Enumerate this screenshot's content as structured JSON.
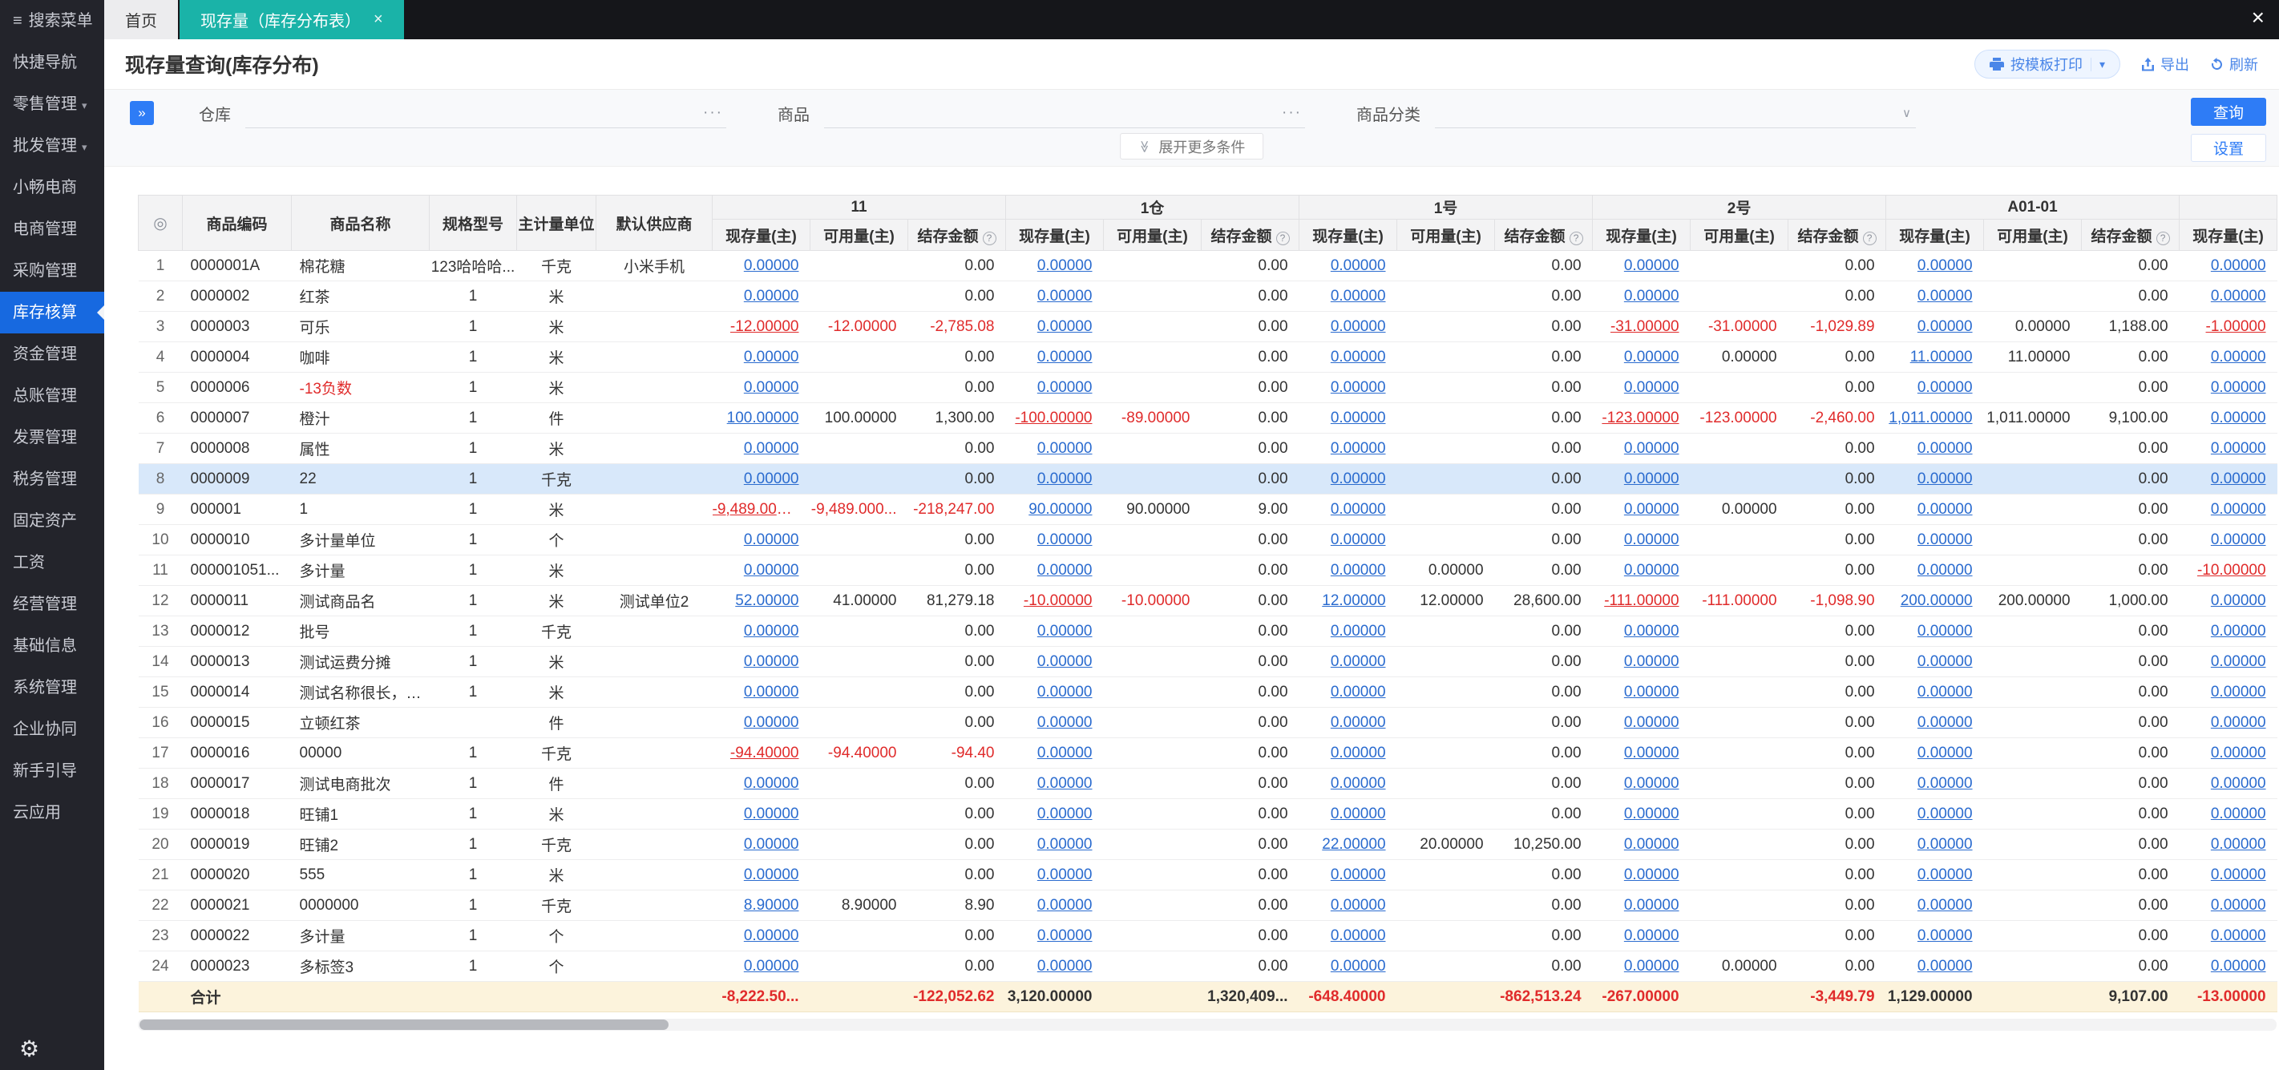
{
  "app": {
    "window_close": "×"
  },
  "tabs": {
    "home": "首页",
    "active": "现存量（库存分布表）",
    "close": "×"
  },
  "sidebar": {
    "items": [
      {
        "label": "搜索菜单",
        "icon": "menu"
      },
      {
        "label": "快捷导航"
      },
      {
        "label": "零售管理",
        "caret": true
      },
      {
        "label": "批发管理",
        "caret": true
      },
      {
        "label": "小畅电商"
      },
      {
        "label": "电商管理"
      },
      {
        "label": "采购管理"
      },
      {
        "label": "库存核算",
        "active": true
      },
      {
        "label": "资金管理"
      },
      {
        "label": "总账管理"
      },
      {
        "label": "发票管理"
      },
      {
        "label": "税务管理"
      },
      {
        "label": "固定资产"
      },
      {
        "label": "工资"
      },
      {
        "label": "经营管理"
      },
      {
        "label": "基础信息"
      },
      {
        "label": "系统管理"
      },
      {
        "label": "企业协同"
      },
      {
        "label": "新手引导"
      },
      {
        "label": "云应用"
      }
    ]
  },
  "header": {
    "title": "现存量查询(库存分布)",
    "print_label": "按模板打印",
    "export_label": "导出",
    "refresh_label": "刷新"
  },
  "filters": {
    "warehouse_label": "仓库",
    "goods_label": "商品",
    "category_label": "商品分类",
    "search_label": "查询",
    "settings_label": "设置",
    "expand_label": "展开更多条件"
  },
  "colors": {
    "accent": "#2e7cf6",
    "tab_active": "#1ab3a8",
    "sidebar_active": "#1769e0",
    "link": "#2a6bcf",
    "negative": "#e02b2b",
    "total_row_bg": "#fcf3dc"
  },
  "table": {
    "fixed_headers": [
      "商品编码",
      "商品名称",
      "规格型号",
      "主计量单位",
      "默认供应商"
    ],
    "groups": [
      {
        "name": "11",
        "cols": 3
      },
      {
        "name": "1仓",
        "cols": 3
      },
      {
        "name": "1号",
        "cols": 3
      },
      {
        "name": "2号",
        "cols": 3
      },
      {
        "name": "A01-01",
        "cols": 3
      },
      {
        "name": "",
        "cols": 1
      }
    ],
    "sub_headers": [
      "现存量(主)",
      "可用量(主)",
      "结存金额"
    ],
    "rows": [
      {
        "num": 1,
        "code": "0000001A",
        "name": "棉花糖",
        "spec": "123哈哈哈...",
        "unit": "千克",
        "supplier": "小米手机",
        "cells": [
          "L|0.00000",
          "",
          "0.00",
          "L|0.00000",
          "",
          "0.00",
          "L|0.00000",
          "",
          "0.00",
          "L|0.00000",
          "",
          "0.00",
          "L|0.00000",
          "",
          "0.00",
          "L|0.00000"
        ]
      },
      {
        "num": 2,
        "code": "0000002",
        "name": "红茶",
        "spec": "1",
        "unit": "米",
        "supplier": "",
        "cells": [
          "L|0.00000",
          "",
          "0.00",
          "L|0.00000",
          "",
          "0.00",
          "L|0.00000",
          "",
          "0.00",
          "L|0.00000",
          "",
          "0.00",
          "L|0.00000",
          "",
          "0.00",
          "L|0.00000"
        ]
      },
      {
        "num": 3,
        "code": "0000003",
        "name": "可乐",
        "spec": "1",
        "unit": "米",
        "supplier": "",
        "cells": [
          "R|-12.00000",
          "r|-12.00000",
          "r|-2,785.08",
          "L|0.00000",
          "",
          "0.00",
          "L|0.00000",
          "",
          "0.00",
          "R|-31.00000",
          "r|-31.00000",
          "r|-1,029.89",
          "L|0.00000",
          "0.00000",
          "1,188.00",
          "R|-1.00000"
        ]
      },
      {
        "num": 4,
        "code": "0000004",
        "name": "咖啡",
        "spec": "1",
        "unit": "米",
        "supplier": "",
        "cells": [
          "L|0.00000",
          "",
          "0.00",
          "L|0.00000",
          "",
          "0.00",
          "L|0.00000",
          "",
          "0.00",
          "L|0.00000",
          "0.00000",
          "0.00",
          "L|11.00000",
          "11.00000",
          "0.00",
          "L|0.00000"
        ]
      },
      {
        "num": 5,
        "code": "0000006",
        "name": "-13负数",
        "name_red": true,
        "spec": "1",
        "unit": "米",
        "supplier": "",
        "cells": [
          "L|0.00000",
          "",
          "0.00",
          "L|0.00000",
          "",
          "0.00",
          "L|0.00000",
          "",
          "0.00",
          "L|0.00000",
          "",
          "0.00",
          "L|0.00000",
          "",
          "0.00",
          "L|0.00000"
        ]
      },
      {
        "num": 6,
        "code": "0000007",
        "name": "橙汁",
        "spec": "1",
        "unit": "件",
        "supplier": "",
        "cells": [
          "L|100.00000",
          "100.00000",
          "1,300.00",
          "R|-100.00000",
          "r|-89.00000",
          "0.00",
          "L|0.00000",
          "",
          "0.00",
          "R|-123.00000",
          "r|-123.00000",
          "r|-2,460.00",
          "L|1,011.00000",
          "1,011.00000",
          "9,100.00",
          "L|0.00000"
        ]
      },
      {
        "num": 7,
        "code": "0000008",
        "name": "属性",
        "spec": "1",
        "unit": "米",
        "supplier": "",
        "cells": [
          "L|0.00000",
          "",
          "0.00",
          "L|0.00000",
          "",
          "0.00",
          "L|0.00000",
          "",
          "0.00",
          "L|0.00000",
          "",
          "0.00",
          "L|0.00000",
          "",
          "0.00",
          "L|0.00000"
        ]
      },
      {
        "num": 8,
        "code": "0000009",
        "name": "22",
        "spec": "1",
        "unit": "千克",
        "supplier": "",
        "highlight": true,
        "cells": [
          "L|0.00000",
          "",
          "0.00",
          "L|0.00000",
          "",
          "0.00",
          "L|0.00000",
          "",
          "0.00",
          "L|0.00000",
          "",
          "0.00",
          "L|0.00000",
          "",
          "0.00",
          "L|0.00000"
        ]
      },
      {
        "num": 9,
        "code": "000001",
        "name": "1",
        "spec": "1",
        "unit": "米",
        "supplier": "",
        "cells": [
          "R|-9,489.00000",
          "r|-9,489.000...",
          "r|-218,247.00",
          "L|90.00000",
          "90.00000",
          "9.00",
          "L|0.00000",
          "",
          "0.00",
          "L|0.00000",
          "0.00000",
          "0.00",
          "L|0.00000",
          "",
          "0.00",
          "L|0.00000"
        ]
      },
      {
        "num": 10,
        "code": "0000010",
        "name": "多计量单位",
        "spec": "1",
        "unit": "个",
        "supplier": "",
        "cells": [
          "L|0.00000",
          "",
          "0.00",
          "L|0.00000",
          "",
          "0.00",
          "L|0.00000",
          "",
          "0.00",
          "L|0.00000",
          "",
          "0.00",
          "L|0.00000",
          "",
          "0.00",
          "L|0.00000"
        ]
      },
      {
        "num": 11,
        "code": "000001051...",
        "name": "多计量",
        "spec": "1",
        "unit": "米",
        "supplier": "",
        "cells": [
          "L|0.00000",
          "",
          "0.00",
          "L|0.00000",
          "",
          "0.00",
          "L|0.00000",
          "0.00000",
          "0.00",
          "L|0.00000",
          "",
          "0.00",
          "L|0.00000",
          "",
          "0.00",
          "R|-10.00000"
        ]
      },
      {
        "num": 12,
        "code": "0000011",
        "name": "测试商品名",
        "spec": "1",
        "unit": "米",
        "supplier": "测试单位2",
        "cells": [
          "L|52.00000",
          "41.00000",
          "81,279.18",
          "R|-10.00000",
          "r|-10.00000",
          "0.00",
          "L|12.00000",
          "12.00000",
          "28,600.00",
          "R|-111.00000",
          "r|-111.00000",
          "r|-1,098.90",
          "L|200.00000",
          "200.00000",
          "1,000.00",
          "L|0.00000"
        ]
      },
      {
        "num": 13,
        "code": "0000012",
        "name": "批号",
        "spec": "1",
        "unit": "千克",
        "supplier": "",
        "cells": [
          "L|0.00000",
          "",
          "0.00",
          "L|0.00000",
          "",
          "0.00",
          "L|0.00000",
          "",
          "0.00",
          "L|0.00000",
          "",
          "0.00",
          "L|0.00000",
          "",
          "0.00",
          "L|0.00000"
        ]
      },
      {
        "num": 14,
        "code": "0000013",
        "name": "测试运费分摊",
        "spec": "1",
        "unit": "米",
        "supplier": "",
        "cells": [
          "L|0.00000",
          "",
          "0.00",
          "L|0.00000",
          "",
          "0.00",
          "L|0.00000",
          "",
          "0.00",
          "L|0.00000",
          "",
          "0.00",
          "L|0.00000",
          "",
          "0.00",
          "L|0.00000"
        ]
      },
      {
        "num": 15,
        "code": "0000014",
        "name": "测试名称很长，然后数...",
        "spec": "1",
        "unit": "米",
        "supplier": "",
        "cells": [
          "L|0.00000",
          "",
          "0.00",
          "L|0.00000",
          "",
          "0.00",
          "L|0.00000",
          "",
          "0.00",
          "L|0.00000",
          "",
          "0.00",
          "L|0.00000",
          "",
          "0.00",
          "L|0.00000"
        ]
      },
      {
        "num": 16,
        "code": "0000015",
        "name": "立顿红茶",
        "spec": "",
        "unit": "件",
        "supplier": "",
        "cells": [
          "L|0.00000",
          "",
          "0.00",
          "L|0.00000",
          "",
          "0.00",
          "L|0.00000",
          "",
          "0.00",
          "L|0.00000",
          "",
          "0.00",
          "L|0.00000",
          "",
          "0.00",
          "L|0.00000"
        ]
      },
      {
        "num": 17,
        "code": "0000016",
        "name": "00000",
        "spec": "1",
        "unit": "千克",
        "supplier": "",
        "cells": [
          "R|-94.40000",
          "r|-94.40000",
          "r|-94.40",
          "L|0.00000",
          "",
          "0.00",
          "L|0.00000",
          "",
          "0.00",
          "L|0.00000",
          "",
          "0.00",
          "L|0.00000",
          "",
          "0.00",
          "L|0.00000"
        ]
      },
      {
        "num": 18,
        "code": "0000017",
        "name": "测试电商批次",
        "spec": "1",
        "unit": "件",
        "supplier": "",
        "cells": [
          "L|0.00000",
          "",
          "0.00",
          "L|0.00000",
          "",
          "0.00",
          "L|0.00000",
          "",
          "0.00",
          "L|0.00000",
          "",
          "0.00",
          "L|0.00000",
          "",
          "0.00",
          "L|0.00000"
        ]
      },
      {
        "num": 19,
        "code": "0000018",
        "name": "旺铺1",
        "spec": "1",
        "unit": "米",
        "supplier": "",
        "cells": [
          "L|0.00000",
          "",
          "0.00",
          "L|0.00000",
          "",
          "0.00",
          "L|0.00000",
          "",
          "0.00",
          "L|0.00000",
          "",
          "0.00",
          "L|0.00000",
          "",
          "0.00",
          "L|0.00000"
        ]
      },
      {
        "num": 20,
        "code": "0000019",
        "name": "旺铺2",
        "spec": "1",
        "unit": "千克",
        "supplier": "",
        "cells": [
          "L|0.00000",
          "",
          "0.00",
          "L|0.00000",
          "",
          "0.00",
          "L|22.00000",
          "20.00000",
          "10,250.00",
          "L|0.00000",
          "",
          "0.00",
          "L|0.00000",
          "",
          "0.00",
          "L|0.00000"
        ]
      },
      {
        "num": 21,
        "code": "0000020",
        "name": "555",
        "spec": "1",
        "unit": "米",
        "supplier": "",
        "cells": [
          "L|0.00000",
          "",
          "0.00",
          "L|0.00000",
          "",
          "0.00",
          "L|0.00000",
          "",
          "0.00",
          "L|0.00000",
          "",
          "0.00",
          "L|0.00000",
          "",
          "0.00",
          "L|0.00000"
        ]
      },
      {
        "num": 22,
        "code": "0000021",
        "name": "0000000",
        "spec": "1",
        "unit": "千克",
        "supplier": "",
        "cells": [
          "L|8.90000",
          "8.90000",
          "8.90",
          "L|0.00000",
          "",
          "0.00",
          "L|0.00000",
          "",
          "0.00",
          "L|0.00000",
          "",
          "0.00",
          "L|0.00000",
          "",
          "0.00",
          "L|0.00000"
        ]
      },
      {
        "num": 23,
        "code": "0000022",
        "name": "多计量",
        "spec": "1",
        "unit": "个",
        "supplier": "",
        "cells": [
          "L|0.00000",
          "",
          "0.00",
          "L|0.00000",
          "",
          "0.00",
          "L|0.00000",
          "",
          "0.00",
          "L|0.00000",
          "",
          "0.00",
          "L|0.00000",
          "",
          "0.00",
          "L|0.00000"
        ]
      },
      {
        "num": 24,
        "code": "0000023",
        "name": "多标签3",
        "spec": "1",
        "unit": "个",
        "supplier": "",
        "cells": [
          "L|0.00000",
          "",
          "0.00",
          "L|0.00000",
          "",
          "0.00",
          "L|0.00000",
          "",
          "0.00",
          "L|0.00000",
          "0.00000",
          "0.00",
          "L|0.00000",
          "",
          "0.00",
          "L|0.00000"
        ]
      }
    ],
    "total": {
      "label": "合计",
      "cells": [
        "r|-8,222.50...",
        "",
        "r|-122,052.62",
        "3,120.00000",
        "",
        "1,320,409...",
        "r|-648.40000",
        "",
        "r|-862,513.24",
        "r|-267.00000",
        "",
        "r|-3,449.79",
        "1,129.00000",
        "",
        "9,107.00",
        "r|-13.00000"
      ]
    }
  }
}
